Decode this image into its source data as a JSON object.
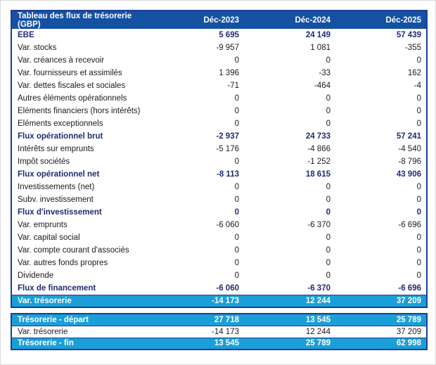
{
  "page": {
    "background": "#ffffff"
  },
  "colors": {
    "page_border": "#d9d9d9",
    "page_bg": "#ffffff",
    "header_bg": "#1551A3",
    "header_text": "#ffffff",
    "accent_cyan": "#1B9FD8",
    "navy_text": "#1F2B73",
    "body_text": "#1a1a1a",
    "table_border": "#1C3E94"
  },
  "chart_data": {
    "type": "table",
    "title": "Tableau des flux de trésorerie (GBP)",
    "columns": [
      "Déc-2023",
      "Déc-2024",
      "Déc-2025"
    ],
    "rows": [
      {
        "label": "EBE",
        "style": "bold",
        "values": [
          5695,
          24149,
          57439
        ]
      },
      {
        "label": "Var. stocks",
        "style": "normal",
        "values": [
          -9957,
          1081,
          -355
        ]
      },
      {
        "label": "Var. créances à recevoir",
        "style": "normal",
        "values": [
          0,
          0,
          0
        ]
      },
      {
        "label": "Var. fournisseurs et assimilés",
        "style": "normal",
        "values": [
          1396,
          -33,
          162
        ]
      },
      {
        "label": "Var. dettes fiscales et sociales",
        "style": "normal",
        "values": [
          -71,
          -464,
          -4
        ]
      },
      {
        "label": "Autres éléments opérationnels",
        "style": "normal",
        "values": [
          0,
          0,
          0
        ]
      },
      {
        "label": "Eléments financiers (hors intérêts)",
        "style": "normal",
        "values": [
          0,
          0,
          0
        ]
      },
      {
        "label": "Eléments exceptionnels",
        "style": "normal",
        "values": [
          0,
          0,
          0
        ]
      },
      {
        "label": "Flux opérationnel brut",
        "style": "bold",
        "values": [
          -2937,
          24733,
          57241
        ]
      },
      {
        "label": "Intérêts sur emprunts",
        "style": "normal",
        "values": [
          -5176,
          -4866,
          -4540
        ]
      },
      {
        "label": "Impôt sociétés",
        "style": "normal",
        "values": [
          0,
          -1252,
          -8796
        ]
      },
      {
        "label": "Flux opérationnel net",
        "style": "bold",
        "values": [
          -8113,
          18615,
          43906
        ]
      },
      {
        "label": "Investissements (net)",
        "style": "normal",
        "values": [
          0,
          0,
          0
        ]
      },
      {
        "label": "Subv. investissement",
        "style": "normal",
        "values": [
          0,
          0,
          0
        ]
      },
      {
        "label": "Flux d'investissement",
        "style": "bold",
        "values": [
          0,
          0,
          0
        ]
      },
      {
        "label": "Var. emprunts",
        "style": "normal",
        "values": [
          -6060,
          -6370,
          -6696
        ]
      },
      {
        "label": "Var. capital social",
        "style": "normal",
        "values": [
          0,
          0,
          0
        ]
      },
      {
        "label": "Var. compte courant d'associés",
        "style": "normal",
        "values": [
          0,
          0,
          0
        ]
      },
      {
        "label": "Var. autres fonds propres",
        "style": "normal",
        "values": [
          0,
          0,
          0
        ]
      },
      {
        "label": "Dividende",
        "style": "normal",
        "values": [
          0,
          0,
          0
        ]
      },
      {
        "label": "Flux de financement",
        "style": "bold",
        "values": [
          -6060,
          -6370,
          -6696
        ]
      },
      {
        "label": "Var. trésorerie",
        "style": "highlight",
        "values": [
          -14173,
          12244,
          37209
        ]
      }
    ],
    "summary_rows": [
      {
        "label": "Trésorerie - départ",
        "style": "highlight",
        "values": [
          27718,
          13545,
          25789
        ]
      },
      {
        "label": "Var. trésorerie",
        "style": "normal",
        "values": [
          -14173,
          12244,
          37209
        ]
      },
      {
        "label": "Trésorerie - fin",
        "style": "highlight",
        "values": [
          13545,
          25789,
          62998
        ]
      }
    ],
    "number_format": "space-grouped thousands, minus sign for negatives"
  }
}
